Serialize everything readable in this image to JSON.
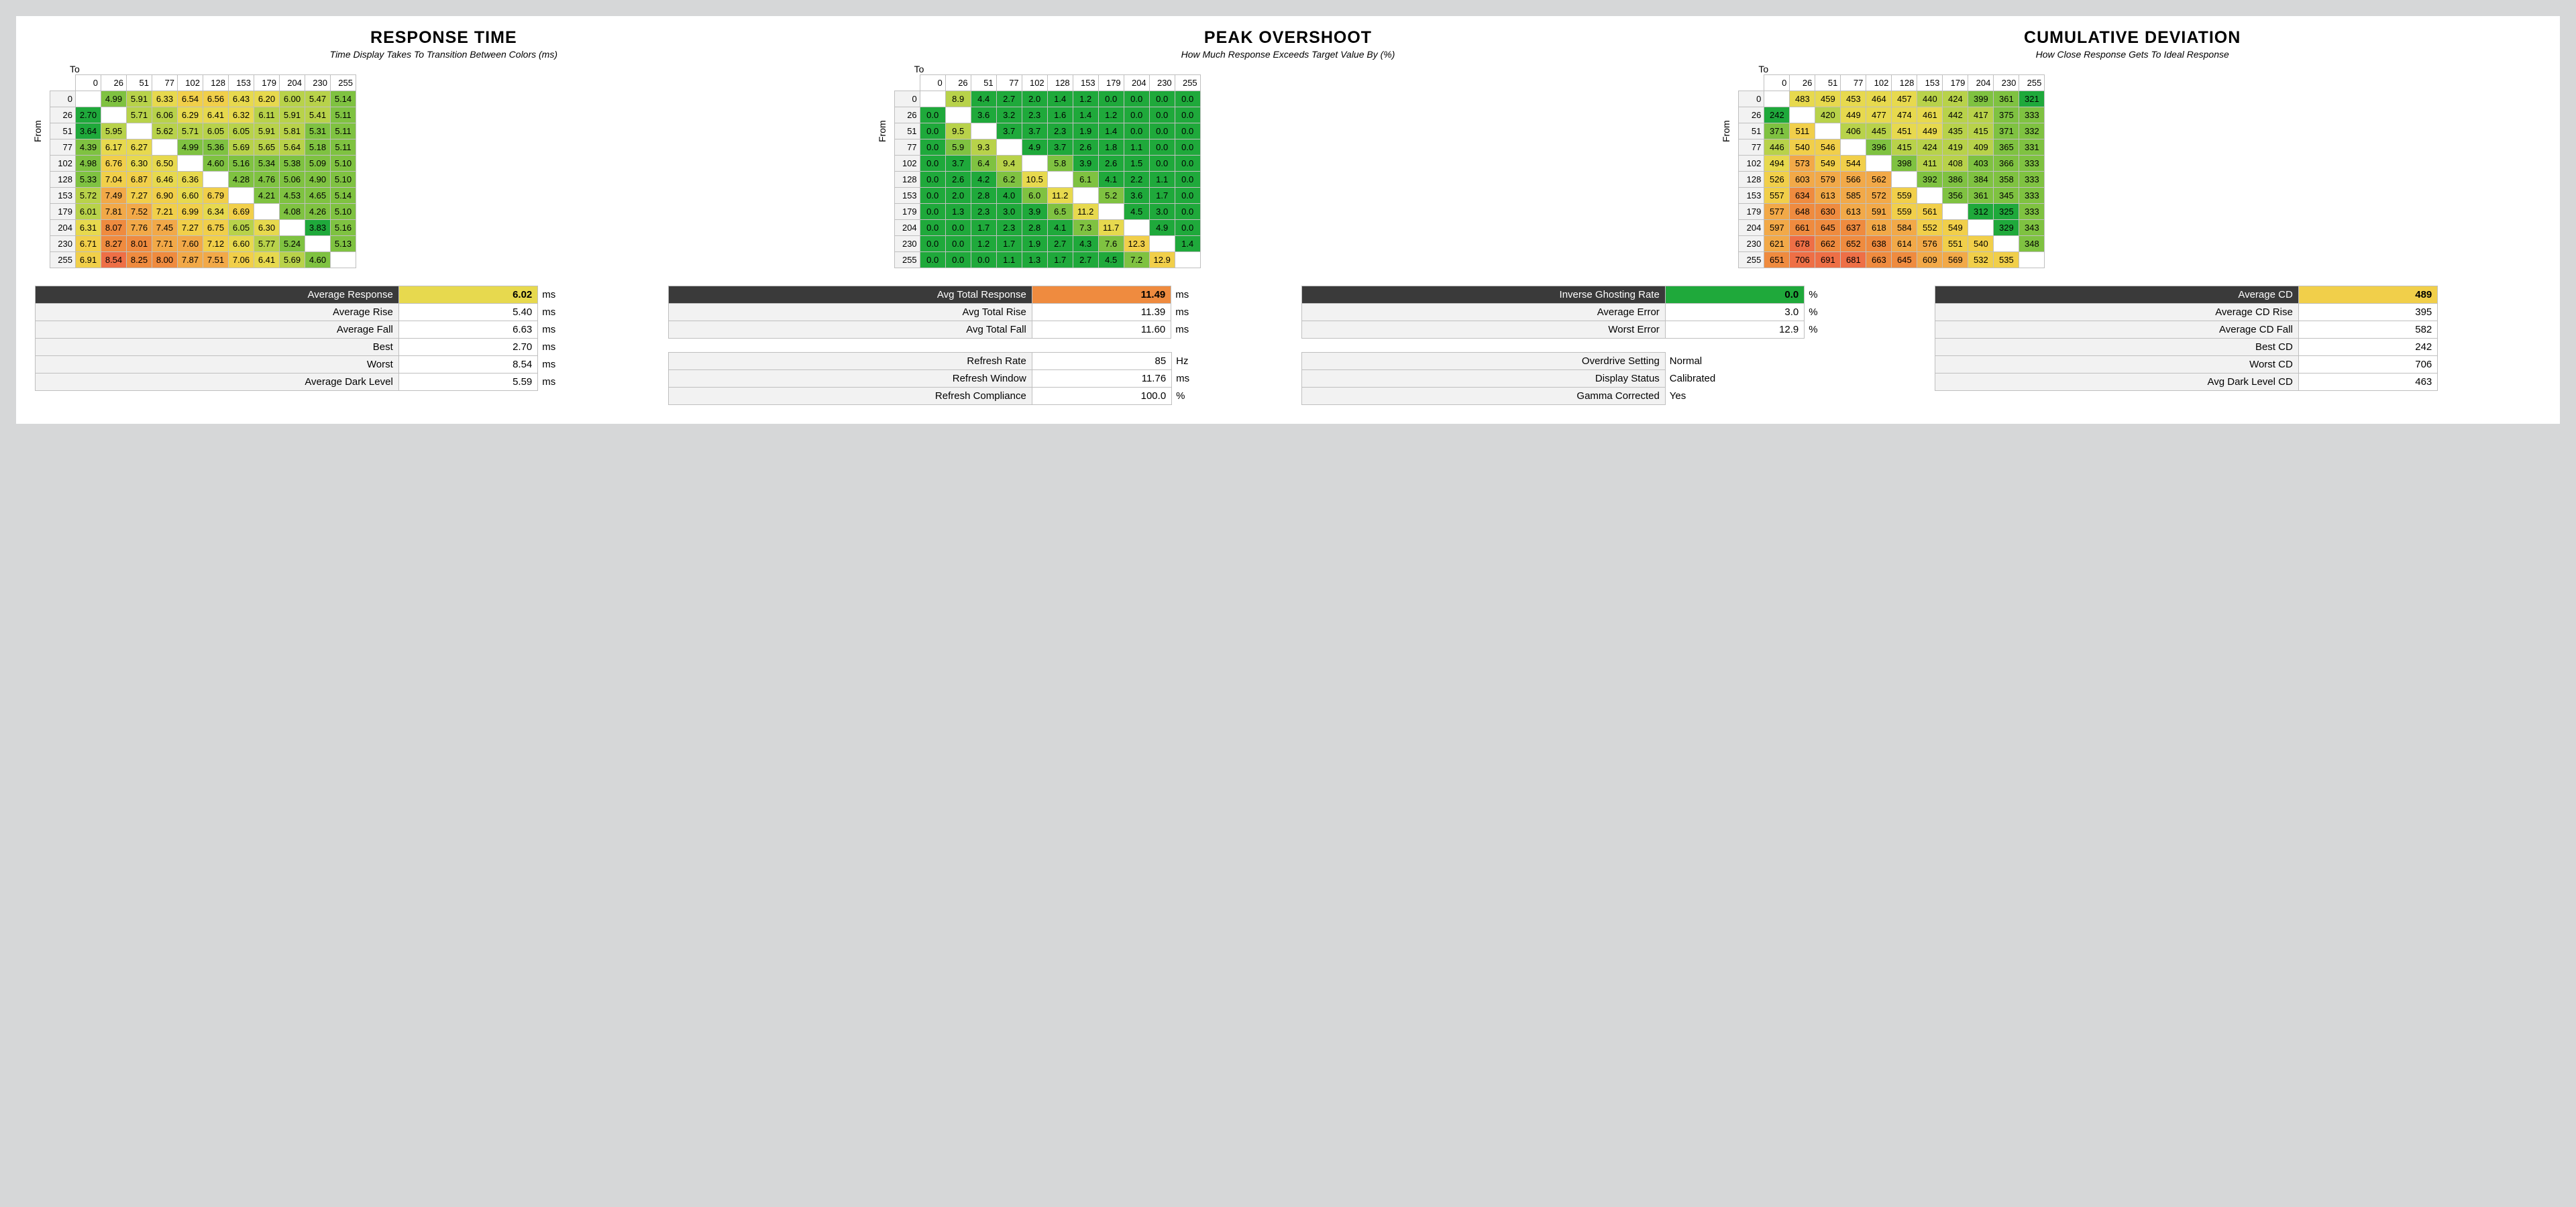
{
  "page": {
    "background": "#ffffff",
    "outer_background": "#d6d7d8"
  },
  "heat_levels": [
    "0",
    "26",
    "51",
    "77",
    "102",
    "128",
    "153",
    "179",
    "204",
    "230",
    "255"
  ],
  "color_scale": {
    "green": "#1fa93b",
    "lime": "#7fc241",
    "yellowg": "#b8d24a",
    "yellow": "#e7d94e",
    "gold": "#f1cf4a",
    "orange": "#f2a948",
    "dorange": "#ef8b3f",
    "red": "#ee6f46",
    "blank": "#ffffff"
  },
  "response_time": {
    "title": "RESPONSE TIME",
    "subtitle": "Time Display Takes To Transition Between Colors (ms)",
    "axis_to": "To",
    "axis_from": "From",
    "cells": [
      [
        null,
        "4.99",
        "5.91",
        "6.33",
        "6.54",
        "6.56",
        "6.43",
        "6.20",
        "6.00",
        "5.47",
        "5.14"
      ],
      [
        "2.70",
        null,
        "5.71",
        "6.06",
        "6.29",
        "6.41",
        "6.32",
        "6.11",
        "5.91",
        "5.41",
        "5.11"
      ],
      [
        "3.64",
        "5.95",
        null,
        "5.62",
        "5.71",
        "6.05",
        "6.05",
        "5.91",
        "5.81",
        "5.31",
        "5.11"
      ],
      [
        "4.39",
        "6.17",
        "6.27",
        null,
        "4.99",
        "5.36",
        "5.69",
        "5.65",
        "5.64",
        "5.18",
        "5.11"
      ],
      [
        "4.98",
        "6.76",
        "6.30",
        "6.50",
        null,
        "4.60",
        "5.16",
        "5.34",
        "5.38",
        "5.09",
        "5.10"
      ],
      [
        "5.33",
        "7.04",
        "6.87",
        "6.46",
        "6.36",
        null,
        "4.28",
        "4.76",
        "5.06",
        "4.90",
        "5.10"
      ],
      [
        "5.72",
        "7.49",
        "7.27",
        "6.90",
        "6.60",
        "6.79",
        null,
        "4.21",
        "4.53",
        "4.65",
        "5.14"
      ],
      [
        "6.01",
        "7.81",
        "7.52",
        "7.21",
        "6.99",
        "6.34",
        "6.69",
        null,
        "4.08",
        "4.26",
        "5.10"
      ],
      [
        "6.31",
        "8.07",
        "7.76",
        "7.45",
        "7.27",
        "6.75",
        "6.05",
        "6.30",
        null,
        "3.83",
        "5.16"
      ],
      [
        "6.71",
        "8.27",
        "8.01",
        "7.71",
        "7.60",
        "7.12",
        "6.60",
        "5.77",
        "5.24",
        null,
        "5.13"
      ],
      [
        "6.91",
        "8.54",
        "8.25",
        "8.00",
        "7.87",
        "7.51",
        "7.06",
        "6.41",
        "5.69",
        "4.60",
        null
      ]
    ],
    "cell_colors": [
      [
        null,
        "lime",
        "yellowg",
        "yellow",
        "gold",
        "gold",
        "yellow",
        "yellow",
        "yellowg",
        "yellowg",
        "lime"
      ],
      [
        "green",
        null,
        "yellowg",
        "yellowg",
        "yellow",
        "yellow",
        "yellow",
        "yellowg",
        "yellowg",
        "yellowg",
        "lime"
      ],
      [
        "green",
        "yellowg",
        null,
        "yellowg",
        "yellowg",
        "yellowg",
        "yellowg",
        "yellowg",
        "yellowg",
        "lime",
        "lime"
      ],
      [
        "lime",
        "yellow",
        "yellow",
        null,
        "lime",
        "lime",
        "yellowg",
        "yellowg",
        "yellowg",
        "lime",
        "lime"
      ],
      [
        "lime",
        "gold",
        "yellow",
        "yellow",
        null,
        "lime",
        "lime",
        "lime",
        "lime",
        "lime",
        "lime"
      ],
      [
        "lime",
        "gold",
        "gold",
        "yellow",
        "yellow",
        null,
        "lime",
        "lime",
        "lime",
        "lime",
        "lime"
      ],
      [
        "yellowg",
        "orange",
        "gold",
        "gold",
        "yellow",
        "gold",
        null,
        "lime",
        "lime",
        "lime",
        "lime"
      ],
      [
        "yellowg",
        "orange",
        "orange",
        "gold",
        "gold",
        "yellow",
        "gold",
        null,
        "lime",
        "lime",
        "lime"
      ],
      [
        "yellow",
        "dorange",
        "orange",
        "orange",
        "gold",
        "gold",
        "yellowg",
        "yellow",
        null,
        "green",
        "lime"
      ],
      [
        "gold",
        "dorange",
        "dorange",
        "orange",
        "orange",
        "gold",
        "yellow",
        "yellowg",
        "lime",
        null,
        "lime"
      ],
      [
        "gold",
        "red",
        "dorange",
        "dorange",
        "orange",
        "orange",
        "gold",
        "yellow",
        "yellowg",
        "lime",
        null
      ]
    ]
  },
  "peak_overshoot": {
    "title": "PEAK OVERSHOOT",
    "subtitle": "How Much Response Exceeds Target Value By (%)",
    "axis_to": "To",
    "axis_from": "From",
    "cells": [
      [
        null,
        "8.9",
        "4.4",
        "2.7",
        "2.0",
        "1.4",
        "1.2",
        "0.0",
        "0.0",
        "0.0",
        "0.0"
      ],
      [
        "0.0",
        null,
        "3.6",
        "3.2",
        "2.3",
        "1.6",
        "1.4",
        "1.2",
        "0.0",
        "0.0",
        "0.0"
      ],
      [
        "0.0",
        "9.5",
        null,
        "3.7",
        "3.7",
        "2.3",
        "1.9",
        "1.4",
        "0.0",
        "0.0",
        "0.0"
      ],
      [
        "0.0",
        "5.9",
        "9.3",
        null,
        "4.9",
        "3.7",
        "2.6",
        "1.8",
        "1.1",
        "0.0",
        "0.0"
      ],
      [
        "0.0",
        "3.7",
        "6.4",
        "9.4",
        null,
        "5.8",
        "3.9",
        "2.6",
        "1.5",
        "0.0",
        "0.0"
      ],
      [
        "0.0",
        "2.6",
        "4.2",
        "6.2",
        "10.5",
        null,
        "6.1",
        "4.1",
        "2.2",
        "1.1",
        "0.0"
      ],
      [
        "0.0",
        "2.0",
        "2.8",
        "4.0",
        "6.0",
        "11.2",
        null,
        "5.2",
        "3.6",
        "1.7",
        "0.0"
      ],
      [
        "0.0",
        "1.3",
        "2.3",
        "3.0",
        "3.9",
        "6.5",
        "11.2",
        null,
        "4.5",
        "3.0",
        "0.0"
      ],
      [
        "0.0",
        "0.0",
        "1.7",
        "2.3",
        "2.8",
        "4.1",
        "7.3",
        "11.7",
        null,
        "4.9",
        "0.0"
      ],
      [
        "0.0",
        "0.0",
        "1.2",
        "1.7",
        "1.9",
        "2.7",
        "4.3",
        "7.6",
        "12.3",
        null,
        "1.4"
      ],
      [
        "0.0",
        "0.0",
        "0.0",
        "1.1",
        "1.3",
        "1.7",
        "2.7",
        "4.5",
        "7.2",
        "12.9",
        null
      ]
    ],
    "cell_colors": [
      [
        null,
        "yellowg",
        "green",
        "green",
        "green",
        "green",
        "green",
        "green",
        "green",
        "green",
        "green"
      ],
      [
        "green",
        null,
        "green",
        "green",
        "green",
        "green",
        "green",
        "green",
        "green",
        "green",
        "green"
      ],
      [
        "green",
        "yellowg",
        null,
        "green",
        "green",
        "green",
        "green",
        "green",
        "green",
        "green",
        "green"
      ],
      [
        "green",
        "lime",
        "yellowg",
        null,
        "green",
        "green",
        "green",
        "green",
        "green",
        "green",
        "green"
      ],
      [
        "green",
        "green",
        "lime",
        "yellowg",
        null,
        "lime",
        "green",
        "green",
        "green",
        "green",
        "green"
      ],
      [
        "green",
        "green",
        "green",
        "lime",
        "yellow",
        null,
        "lime",
        "green",
        "green",
        "green",
        "green"
      ],
      [
        "green",
        "green",
        "green",
        "green",
        "lime",
        "yellow",
        null,
        "lime",
        "green",
        "green",
        "green"
      ],
      [
        "green",
        "green",
        "green",
        "green",
        "green",
        "lime",
        "yellow",
        null,
        "green",
        "green",
        "green"
      ],
      [
        "green",
        "green",
        "green",
        "green",
        "green",
        "green",
        "lime",
        "yellow",
        null,
        "green",
        "green"
      ],
      [
        "green",
        "green",
        "green",
        "green",
        "green",
        "green",
        "green",
        "lime",
        "gold",
        null,
        "green"
      ],
      [
        "green",
        "green",
        "green",
        "green",
        "green",
        "green",
        "green",
        "green",
        "lime",
        "gold",
        null
      ]
    ]
  },
  "cumulative_deviation": {
    "title": "CUMULATIVE DEVIATION",
    "subtitle": "How Close Response Gets To Ideal Response",
    "axis_to": "To",
    "axis_from": "From",
    "cells": [
      [
        null,
        "483",
        "459",
        "453",
        "464",
        "457",
        "440",
        "424",
        "399",
        "361",
        "321"
      ],
      [
        "242",
        null,
        "420",
        "449",
        "477",
        "474",
        "461",
        "442",
        "417",
        "375",
        "333"
      ],
      [
        "371",
        "511",
        null,
        "406",
        "445",
        "451",
        "449",
        "435",
        "415",
        "371",
        "332"
      ],
      [
        "446",
        "540",
        "546",
        null,
        "396",
        "415",
        "424",
        "419",
        "409",
        "365",
        "331"
      ],
      [
        "494",
        "573",
        "549",
        "544",
        null,
        "398",
        "411",
        "408",
        "403",
        "366",
        "333"
      ],
      [
        "526",
        "603",
        "579",
        "566",
        "562",
        null,
        "392",
        "386",
        "384",
        "358",
        "333"
      ],
      [
        "557",
        "634",
        "613",
        "585",
        "572",
        "559",
        null,
        "356",
        "361",
        "345",
        "333"
      ],
      [
        "577",
        "648",
        "630",
        "613",
        "591",
        "559",
        "561",
        null,
        "312",
        "325",
        "333"
      ],
      [
        "597",
        "661",
        "645",
        "637",
        "618",
        "584",
        "552",
        "549",
        null,
        "329",
        "343"
      ],
      [
        "621",
        "678",
        "662",
        "652",
        "638",
        "614",
        "576",
        "551",
        "540",
        null,
        "348"
      ],
      [
        "651",
        "706",
        "691",
        "681",
        "663",
        "645",
        "609",
        "569",
        "532",
        "535",
        null
      ]
    ],
    "cell_colors": [
      [
        null,
        "yellow",
        "yellow",
        "yellow",
        "yellow",
        "yellow",
        "yellowg",
        "yellowg",
        "lime",
        "lime",
        "green"
      ],
      [
        "green",
        null,
        "yellowg",
        "yellow",
        "yellow",
        "yellow",
        "yellow",
        "yellowg",
        "yellowg",
        "lime",
        "lime"
      ],
      [
        "lime",
        "gold",
        null,
        "yellowg",
        "yellowg",
        "yellow",
        "yellow",
        "yellowg",
        "yellowg",
        "lime",
        "lime"
      ],
      [
        "yellowg",
        "gold",
        "gold",
        null,
        "lime",
        "yellowg",
        "yellowg",
        "yellowg",
        "yellowg",
        "lime",
        "lime"
      ],
      [
        "yellow",
        "orange",
        "gold",
        "gold",
        null,
        "lime",
        "yellowg",
        "yellowg",
        "lime",
        "lime",
        "lime"
      ],
      [
        "gold",
        "orange",
        "orange",
        "orange",
        "orange",
        null,
        "lime",
        "lime",
        "lime",
        "lime",
        "lime"
      ],
      [
        "gold",
        "dorange",
        "orange",
        "orange",
        "orange",
        "gold",
        null,
        "lime",
        "lime",
        "lime",
        "lime"
      ],
      [
        "orange",
        "dorange",
        "dorange",
        "orange",
        "orange",
        "gold",
        "gold",
        null,
        "green",
        "green",
        "lime"
      ],
      [
        "orange",
        "dorange",
        "dorange",
        "dorange",
        "orange",
        "orange",
        "gold",
        "gold",
        null,
        "green",
        "lime"
      ],
      [
        "orange",
        "red",
        "dorange",
        "dorange",
        "dorange",
        "orange",
        "orange",
        "gold",
        "gold",
        null,
        "lime"
      ],
      [
        "dorange",
        "red",
        "red",
        "red",
        "dorange",
        "dorange",
        "orange",
        "orange",
        "gold",
        "gold",
        null
      ]
    ]
  },
  "stats": {
    "response": {
      "headline_label": "Average Response",
      "headline_value": "6.02",
      "headline_unit": "ms",
      "headline_color": "#e7d94e",
      "rows": [
        {
          "label": "Average Rise",
          "value": "5.40",
          "unit": "ms"
        },
        {
          "label": "Average Fall",
          "value": "6.63",
          "unit": "ms"
        },
        {
          "label": "Best",
          "value": "2.70",
          "unit": "ms"
        },
        {
          "label": "Worst",
          "value": "8.54",
          "unit": "ms"
        },
        {
          "label": "Average Dark Level",
          "value": "5.59",
          "unit": "ms"
        }
      ]
    },
    "total_response": {
      "headline_label": "Avg Total Response",
      "headline_value": "11.49",
      "headline_unit": "ms",
      "headline_color": "#ef8b3f",
      "rows": [
        {
          "label": "Avg Total Rise",
          "value": "11.39",
          "unit": "ms"
        },
        {
          "label": "Avg Total Fall",
          "value": "11.60",
          "unit": "ms"
        }
      ]
    },
    "refresh": {
      "rows": [
        {
          "label": "Refresh Rate",
          "value": "85",
          "unit": "Hz"
        },
        {
          "label": "Refresh Window",
          "value": "11.76",
          "unit": "ms"
        },
        {
          "label": "Refresh Compliance",
          "value": "100.0",
          "unit": "%"
        }
      ]
    },
    "ghosting": {
      "headline_label": "Inverse Ghosting Rate",
      "headline_value": "0.0",
      "headline_unit": "%",
      "headline_color": "#1fa93b",
      "rows": [
        {
          "label": "Average Error",
          "value": "3.0",
          "unit": "%"
        },
        {
          "label": "Worst Error",
          "value": "12.9",
          "unit": "%"
        }
      ]
    },
    "settings": {
      "rows": [
        {
          "label": "Overdrive Setting",
          "value": "Normal"
        },
        {
          "label": "Display Status",
          "value": "Calibrated"
        },
        {
          "label": "Gamma Corrected",
          "value": "Yes"
        }
      ]
    },
    "cd": {
      "headline_label": "Average CD",
      "headline_value": "489",
      "headline_unit": "",
      "headline_color": "#f1cf4a",
      "rows": [
        {
          "label": "Average CD Rise",
          "value": "395",
          "unit": ""
        },
        {
          "label": "Average CD Fall",
          "value": "582",
          "unit": ""
        },
        {
          "label": "Best CD",
          "value": "242",
          "unit": ""
        },
        {
          "label": "Worst CD",
          "value": "706",
          "unit": ""
        },
        {
          "label": "Avg Dark Level CD",
          "value": "463",
          "unit": ""
        }
      ]
    }
  }
}
